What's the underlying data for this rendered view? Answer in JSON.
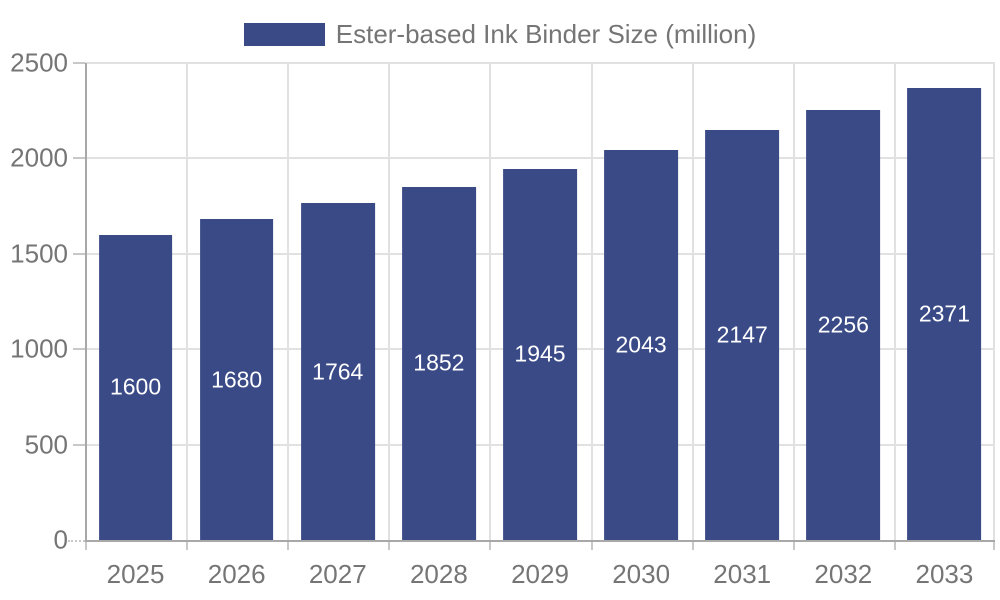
{
  "chart_data": {
    "type": "bar",
    "title": "",
    "legend": {
      "label": "Ester-based Ink Binder Size (million)",
      "position": "top-center"
    },
    "categories": [
      "2025",
      "2026",
      "2027",
      "2028",
      "2029",
      "2030",
      "2031",
      "2032",
      "2033"
    ],
    "series": [
      {
        "name": "Ester-based Ink Binder Size (million)",
        "values": [
          1600,
          1680,
          1764,
          1852,
          1945,
          2043,
          2147,
          2256,
          2371
        ]
      }
    ],
    "bar_value_labels": [
      1600,
      1680,
      1764,
      1852,
      1945,
      2043,
      2147,
      2256,
      2371
    ],
    "xlabel": "",
    "ylabel": "",
    "ylim": [
      0,
      2500
    ],
    "yticks": [
      0,
      500,
      1000,
      1500,
      2000,
      2500
    ],
    "grid": true,
    "legend_position": "top",
    "colors": {
      "bar": "#394A87",
      "bar_label": "#FFFFFF",
      "axis_text": "#757575",
      "legend_text": "#757575",
      "gridline": "#E1E1E1",
      "axis_line": "#A8A8A8",
      "tick_mark": "#C8C8C8",
      "background": "#FFFFFF"
    }
  }
}
